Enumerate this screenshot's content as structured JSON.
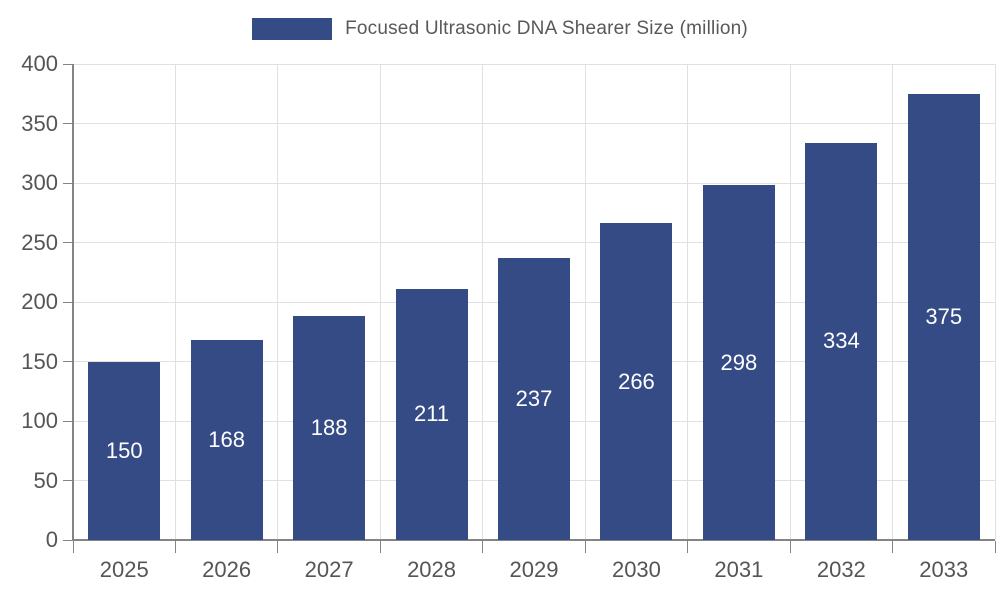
{
  "chart_data": {
    "type": "bar",
    "title": "Focused Ultrasonic DNA Shearer Size (million)",
    "legend": [
      "Focused Ultrasonic DNA Shearer Size (million)"
    ],
    "legend_position": "top-center",
    "categories": [
      "2025",
      "2026",
      "2027",
      "2028",
      "2029",
      "2030",
      "2031",
      "2032",
      "2033"
    ],
    "series": [
      {
        "name": "Focused Ultrasonic DNA Shearer Size (million)",
        "values": [
          150,
          168,
          188,
          211,
          237,
          266,
          298,
          334,
          375
        ]
      }
    ],
    "value_labels_shown": true,
    "xlabel": "",
    "ylabel": "",
    "ylim": [
      0,
      400
    ],
    "yticks": [
      0,
      50,
      100,
      150,
      200,
      250,
      300,
      350,
      400
    ],
    "grid": true,
    "colors": {
      "bar": "#354B85",
      "value_label": "#ffffff",
      "gridline": "#e0e0e0",
      "axis_line": "#848484",
      "axis_text": "#555555",
      "legend_text": "#595959",
      "background": "#ffffff"
    }
  }
}
